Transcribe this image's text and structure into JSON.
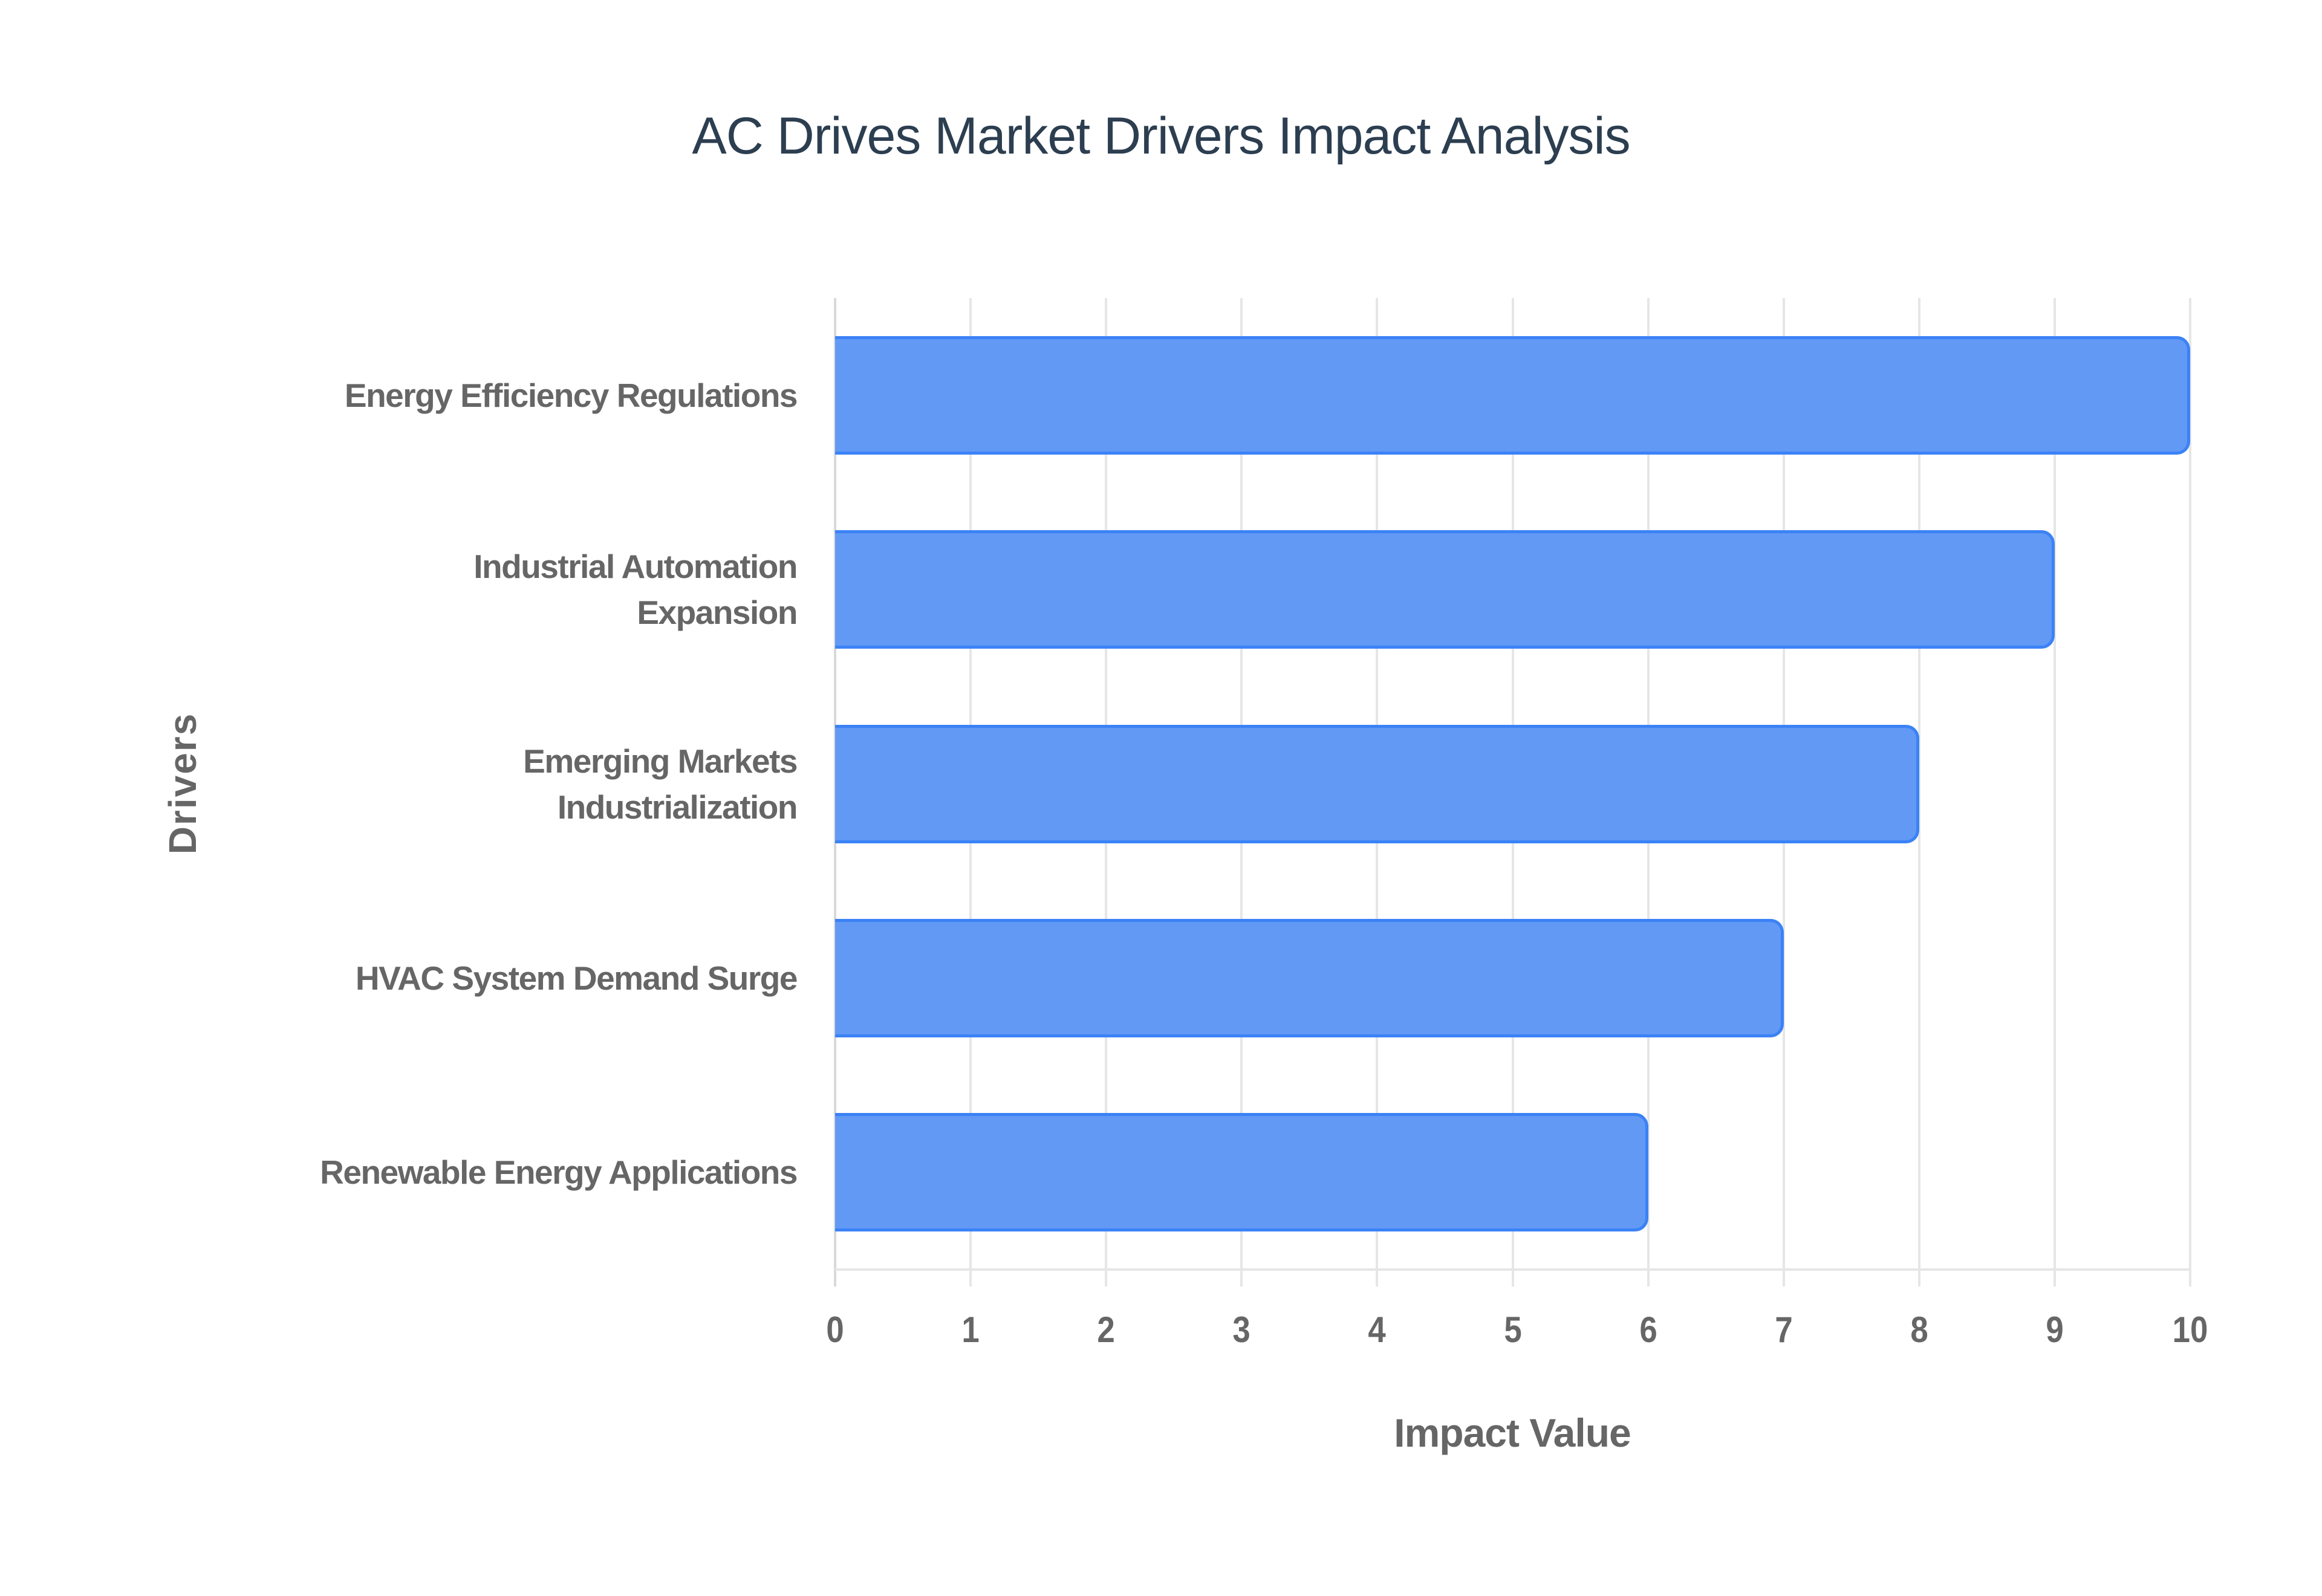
{
  "chart_data": {
    "type": "bar",
    "orientation": "horizontal",
    "title": "AC Drives Market Drivers Impact Analysis",
    "xlabel": "Impact Value",
    "ylabel": "Drivers",
    "categories": [
      "Energy Efficiency Regulations",
      "Industrial Automation Expansion",
      "Emerging Markets Industrialization",
      "HVAC System Demand Surge",
      "Renewable Energy Applications"
    ],
    "category_lines": [
      [
        "Energy Efficiency Regulations"
      ],
      [
        "Industrial Automation",
        "Expansion"
      ],
      [
        "Emerging Markets",
        "Industrialization"
      ],
      [
        "HVAC System Demand Surge"
      ],
      [
        "Renewable Energy Applications"
      ]
    ],
    "values": [
      10,
      9,
      8,
      7,
      6
    ],
    "xlim": [
      0,
      10
    ],
    "x_ticks": [
      "0",
      "1",
      "2",
      "3",
      "4",
      "5",
      "6",
      "7",
      "8",
      "9",
      "10"
    ],
    "grid": true,
    "legend": null,
    "colors": {
      "bar_fill": "#6199f5",
      "bar_border": "#3b82f6",
      "title": "#2c3e50",
      "axis_text": "#666666",
      "grid": "#e6e6e6"
    }
  }
}
